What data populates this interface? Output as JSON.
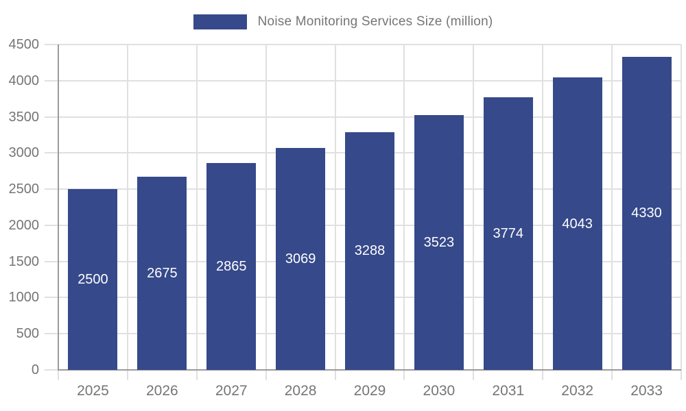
{
  "legend": {
    "label": "Noise Monitoring Services Size (million)"
  },
  "chart_data": {
    "type": "bar",
    "title": "",
    "categories": [
      "2025",
      "2026",
      "2027",
      "2028",
      "2029",
      "2030",
      "2031",
      "2032",
      "2033"
    ],
    "values": [
      2500,
      2675,
      2865,
      3069,
      3288,
      3523,
      3774,
      4043,
      4330
    ],
    "series": [
      {
        "name": "Noise Monitoring Services Size (million)",
        "values": [
          2500,
          2675,
          2865,
          3069,
          3288,
          3523,
          3774,
          4043,
          4330
        ]
      }
    ],
    "xlabel": "",
    "ylabel": "",
    "ylim": [
      0,
      4500
    ],
    "y_ticks": [
      0,
      500,
      1000,
      1500,
      2000,
      2500,
      3000,
      3500,
      4000,
      4500
    ],
    "grid": true,
    "legend_position": "top",
    "bar_value_labels": true
  },
  "colors": {
    "bar": "#36498a",
    "bar_label_text": "#ffffff",
    "grid_line": "#e0e0e0",
    "axis_line": "#9a9a9a",
    "tick_text": "#757575",
    "legend_text": "#757575",
    "background": "#ffffff"
  }
}
